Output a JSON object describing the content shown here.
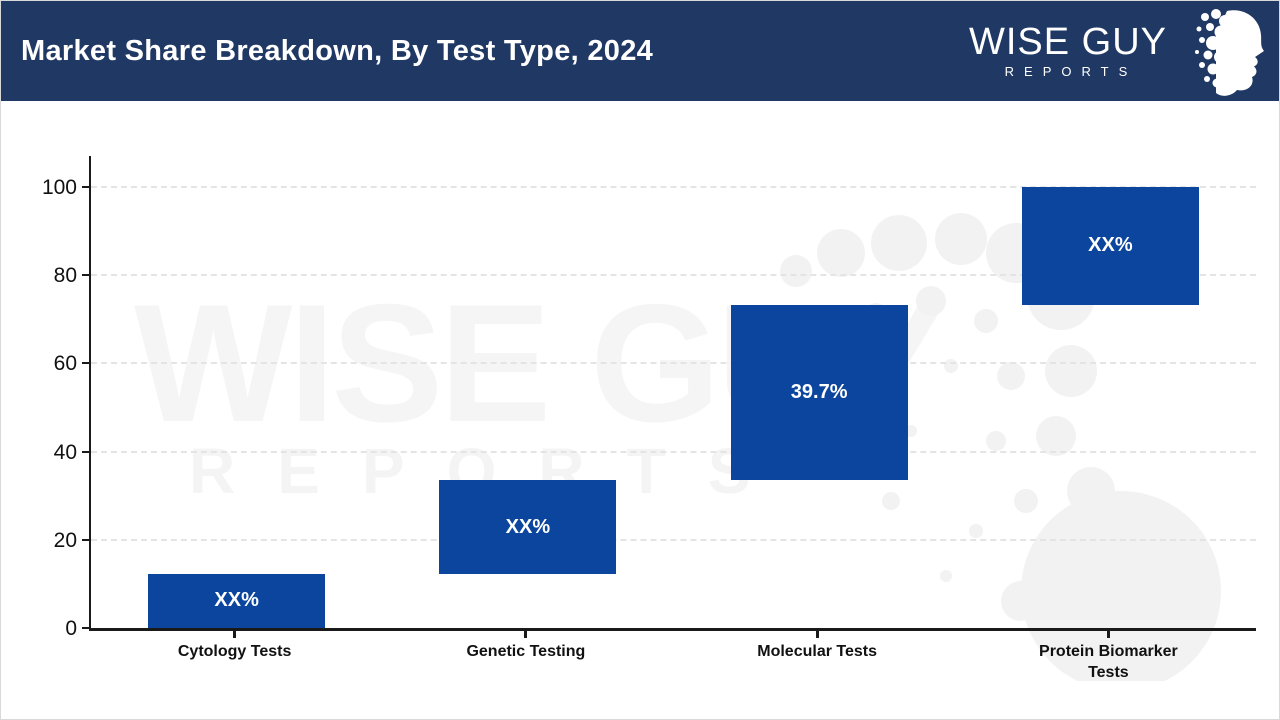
{
  "header": {
    "title": "Market Share Breakdown, By Test Type, 2024",
    "logo": {
      "line1": "WISE GUY",
      "line2": "REPORTS"
    }
  },
  "watermark": {
    "line1": "WISE GUY",
    "line2": "REPORTS"
  },
  "colors": {
    "header_bg": "#203864",
    "bar_blue": "#0c459e",
    "axis": "#1a1a1a",
    "gridline": "#e4e4e4",
    "watermark": "#f5f5f5"
  },
  "chart_data": {
    "type": "bar",
    "variant": "floating-waterfall",
    "title": "Market Share Breakdown, By Test Type, 2024",
    "categories": [
      "Cytology Tests",
      "Genetic Testing",
      "Molecular Tests",
      "Protein Biomarker Tests"
    ],
    "segments": [
      {
        "category": "Cytology Tests",
        "start": 0,
        "end": 12.3,
        "label": "XX%"
      },
      {
        "category": "Genetic Testing",
        "start": 12.2,
        "end": 33.5,
        "label": "XX%"
      },
      {
        "category": "Molecular Tests",
        "start": 33.5,
        "end": 73.2,
        "label": "39.7%"
      },
      {
        "category": "Protein Biomarker Tests",
        "start": 73.3,
        "end": 100,
        "label": "XX%"
      }
    ],
    "ylim": [
      0,
      100
    ],
    "yticks": [
      0,
      20,
      40,
      60,
      80,
      100
    ],
    "xlabel": "",
    "ylabel": "",
    "grid": "horizontal-dashed",
    "legend": "none",
    "bar_color": "#0c459e",
    "bar_label_color": "#ffffff"
  }
}
